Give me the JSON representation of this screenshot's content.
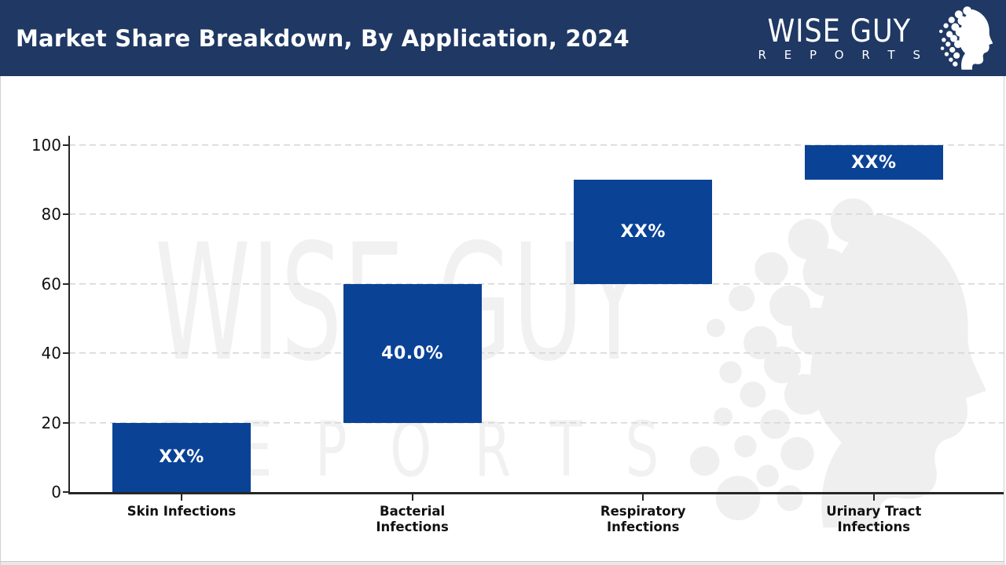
{
  "header": {
    "title": "Market Share Breakdown, By Application, 2024",
    "background": "#1f3864",
    "logo": {
      "line1": "WISE GUY",
      "line2": "R E P O R T S",
      "icon": "wise-guy-head-icon"
    }
  },
  "watermark": {
    "line1": "WISE GUY",
    "line2": "REPORTS"
  },
  "chart_data": {
    "type": "bar",
    "subtype": "floating-range-bars",
    "title": "Market Share Breakdown, By Application, 2024",
    "categories": [
      "Skin Infections",
      "Bacterial Infections",
      "Respiratory Infections",
      "Urinary Tract Infections"
    ],
    "category_label_lines": [
      [
        "Skin Infections"
      ],
      [
        "Bacterial",
        "Infections"
      ],
      [
        "Respiratory",
        "Infections"
      ],
      [
        "Urinary Tract",
        "Infections"
      ]
    ],
    "bars": [
      {
        "category": "Skin Infections",
        "start": 0,
        "end": 20,
        "label": "XX%"
      },
      {
        "category": "Bacterial Infections",
        "start": 20,
        "end": 60,
        "label": "40.0%"
      },
      {
        "category": "Respiratory Infections",
        "start": 60,
        "end": 90,
        "label": "XX%"
      },
      {
        "category": "Urinary Tract Infections",
        "start": 90,
        "end": 100,
        "label": "XX%"
      }
    ],
    "ylim": [
      0,
      100
    ],
    "yticks": [
      0,
      20,
      40,
      60,
      80,
      100
    ],
    "grid": "dashed-horizontal",
    "legend": "none",
    "bar_color": "#0a4296",
    "bar_label_color": "#ffffff",
    "axis_color": "#262626",
    "gridline_color": "#d7d7d7"
  }
}
